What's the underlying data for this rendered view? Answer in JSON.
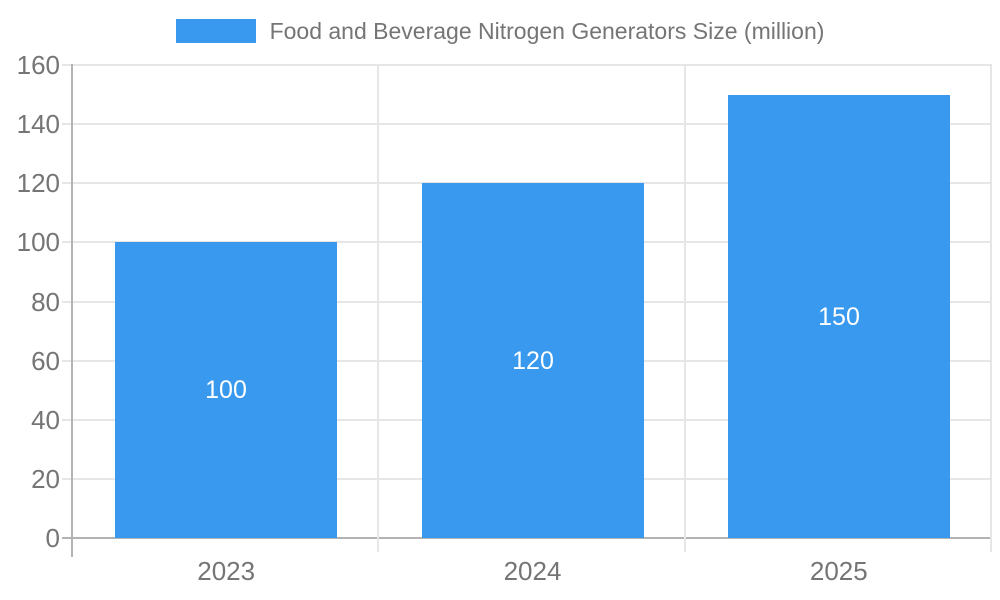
{
  "legend": {
    "label": "Food and Beverage Nitrogen Generators Size (million)"
  },
  "chart_data": {
    "type": "bar",
    "title": "Food and Beverage Nitrogen Generators Size (million)",
    "categories": [
      "2023",
      "2024",
      "2025"
    ],
    "values": [
      100,
      120,
      150
    ],
    "data_labels": [
      "100",
      "120",
      "150"
    ],
    "series": [
      {
        "name": "Food and Beverage Nitrogen Generators Size (million)",
        "values": [
          100,
          120,
          150
        ]
      }
    ],
    "xlabel": "",
    "ylabel": "",
    "ylim": [
      0,
      160
    ],
    "yticks": [
      0,
      20,
      40,
      60,
      80,
      100,
      120,
      140,
      160
    ],
    "grid": true,
    "legend_position": "top",
    "colors": {
      "bar": "#3899ee",
      "data_label_text": "#ffffff",
      "axis_text": "#757575",
      "legend_text": "#757575",
      "gridline": "#e6e6e6",
      "axis_line": "#b3b3b3",
      "background": "#ffffff"
    }
  }
}
